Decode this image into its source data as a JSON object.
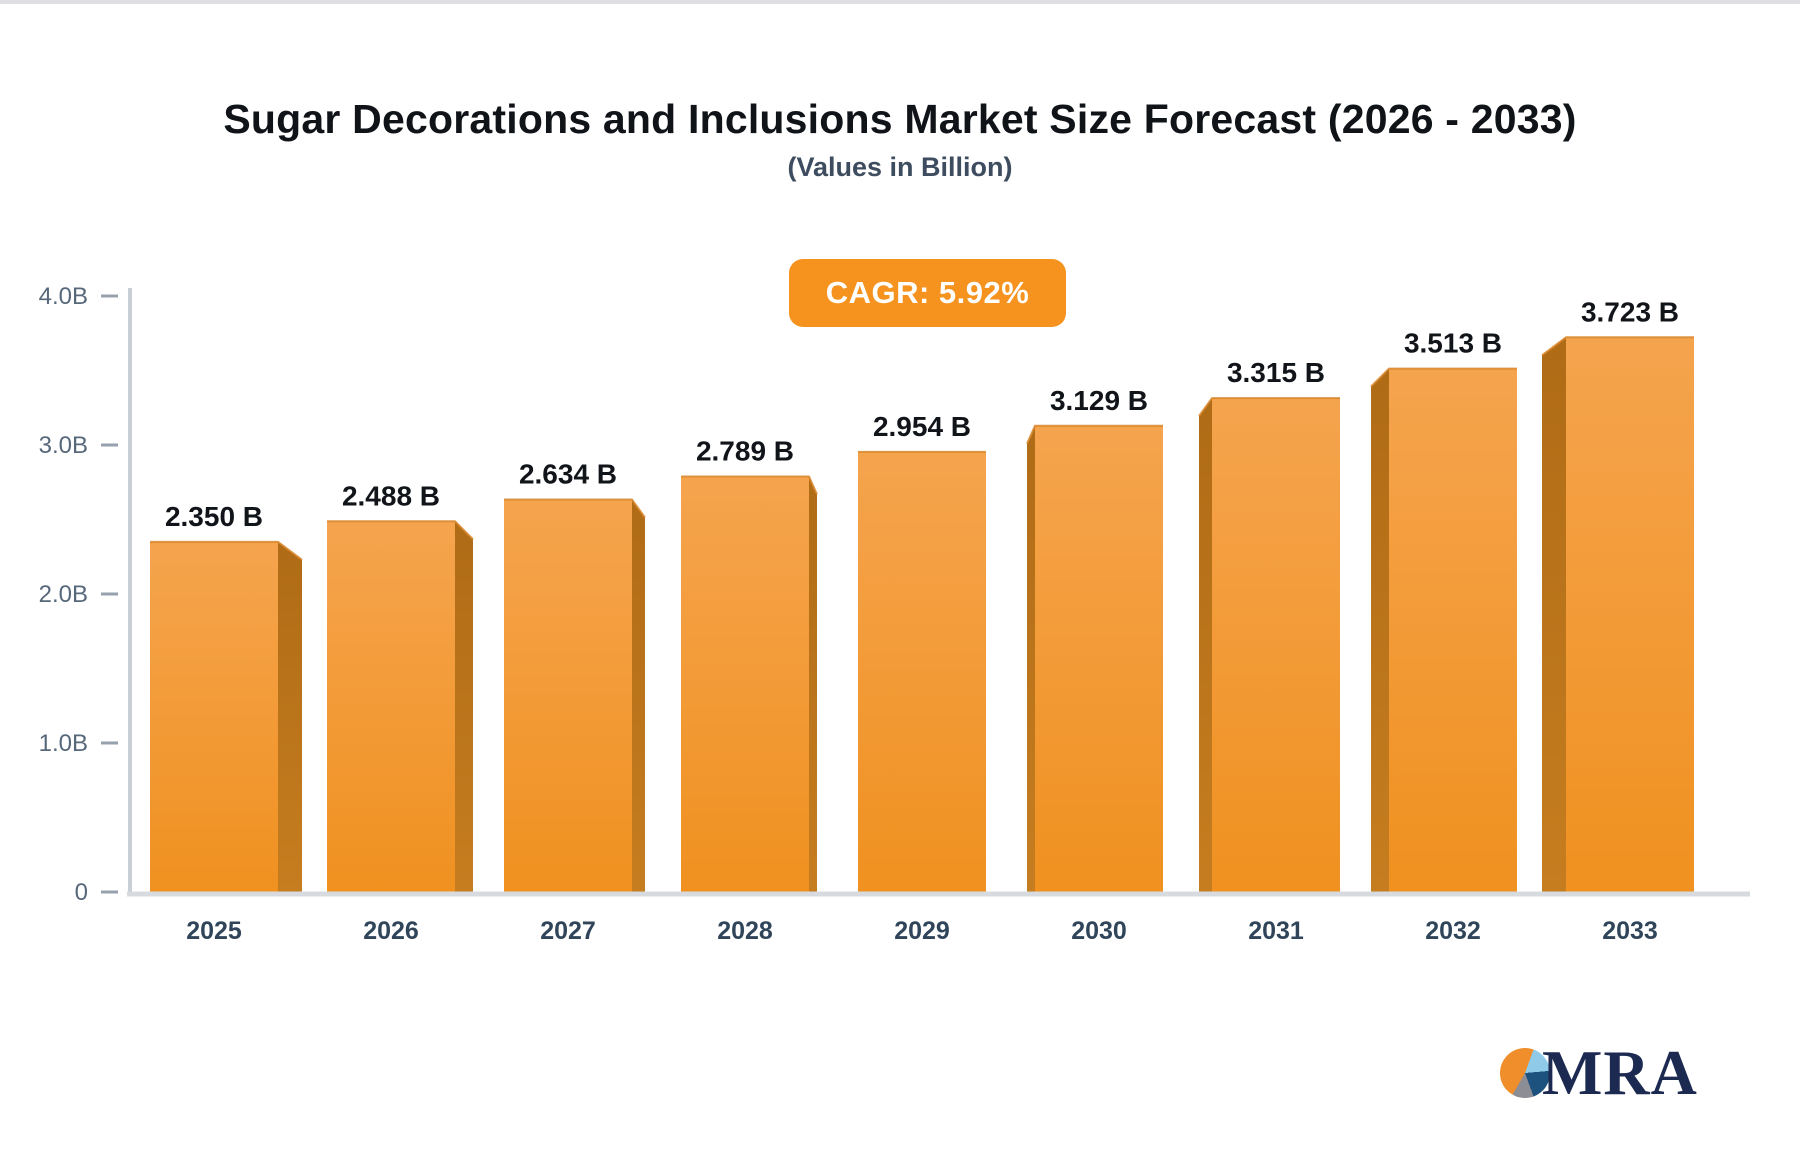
{
  "title": "Sugar Decorations and Inclusions Market Size Forecast (2026 - 2033)",
  "subtitle": "(Values in Billion)",
  "badge": {
    "label": "CAGR: 5.92%",
    "bg": "#F6921E"
  },
  "chart_data": {
    "type": "bar",
    "title": "Sugar Decorations and Inclusions Market Size Forecast (2026 - 2033)",
    "subtitle": "(Values in Billion)",
    "categories": [
      "2025",
      "2026",
      "2027",
      "2028",
      "2029",
      "2030",
      "2031",
      "2032",
      "2033"
    ],
    "values": [
      2.35,
      2.488,
      2.634,
      2.789,
      2.954,
      3.129,
      3.315,
      3.513,
      3.723
    ],
    "labels": [
      "2.350 B",
      "2.488 B",
      "2.634 B",
      "2.789 B",
      "2.954 B",
      "3.129 B",
      "3.315 B",
      "3.513 B",
      "3.723 B"
    ],
    "y_ticks": [
      {
        "value": 4,
        "label": "4.0B"
      },
      {
        "value": 3,
        "label": "3.0B"
      },
      {
        "value": 2,
        "label": "2.0B"
      },
      {
        "value": 1,
        "label": "1.0B"
      },
      {
        "value": 0,
        "label": "0"
      }
    ],
    "ylim": [
      0,
      4
    ],
    "xlabel": "",
    "ylabel": "",
    "legend": "none",
    "grid": "off",
    "bar_style_3d": true,
    "colors": {
      "bar_front_top": "#F5A44E",
      "bar_front_bottom": "#F09120",
      "bar_side_top": "#AF6B15",
      "bar_side_bottom": "#C67D20",
      "bar_edge": "#D8862B",
      "axis_line": "#C9CFD7",
      "baseline": "#D7DBDF",
      "tick_dash": "#97A1AD",
      "y_label": "#57687b",
      "x_label": "#30455a",
      "value_label": "#11151a"
    }
  },
  "logo": {
    "text": "MRA",
    "pie": {
      "orange": "#EF8E2A",
      "light_blue": "#8FCBE8",
      "navy": "#1D517E",
      "gray": "#8D8D95"
    }
  }
}
